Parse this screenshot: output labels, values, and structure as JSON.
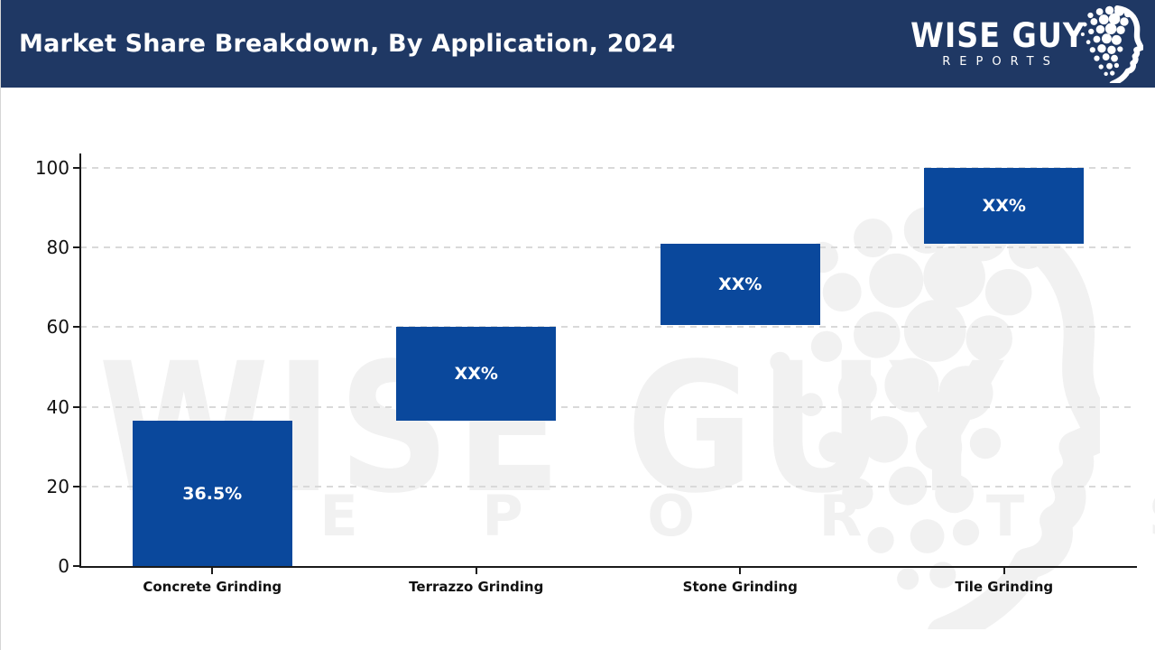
{
  "header": {
    "title": "Market Share Breakdown, By Application, 2024",
    "bg_color": "#1f3864",
    "logo": {
      "line1": "WISE GUY",
      "line2": "REPORTS"
    }
  },
  "watermark": {
    "line1": "WISE GUY",
    "line2": "REPORTS"
  },
  "chart_data": {
    "type": "bar",
    "variant": "waterfall-floating-bars",
    "title": "Market Share Breakdown, By Application, 2024",
    "categories": [
      "Concrete Grinding",
      "Terrazzo Grinding",
      "Stone Grinding",
      "Tile Grinding"
    ],
    "series": [
      {
        "name": "Market Share %",
        "segments": [
          {
            "category": "Concrete Grinding",
            "from": 0,
            "to": 36.5,
            "label": "36.5%"
          },
          {
            "category": "Terrazzo Grinding",
            "from": 36.5,
            "to": 60,
            "label": "XX%"
          },
          {
            "category": "Stone Grinding",
            "from": 60.5,
            "to": 81,
            "label": "XX%"
          },
          {
            "category": "Tile Grinding",
            "from": 81,
            "to": 100,
            "label": "XX%"
          }
        ]
      }
    ],
    "bar_color": "#0a489c",
    "bar_label_color": "#ffffff",
    "xlabel": "",
    "ylabel": "",
    "ylim": [
      0,
      100
    ],
    "yticks": [
      0,
      20,
      40,
      60,
      80,
      100
    ],
    "grid": "horizontal dashed, color #d9d9d9",
    "legend": "none"
  }
}
